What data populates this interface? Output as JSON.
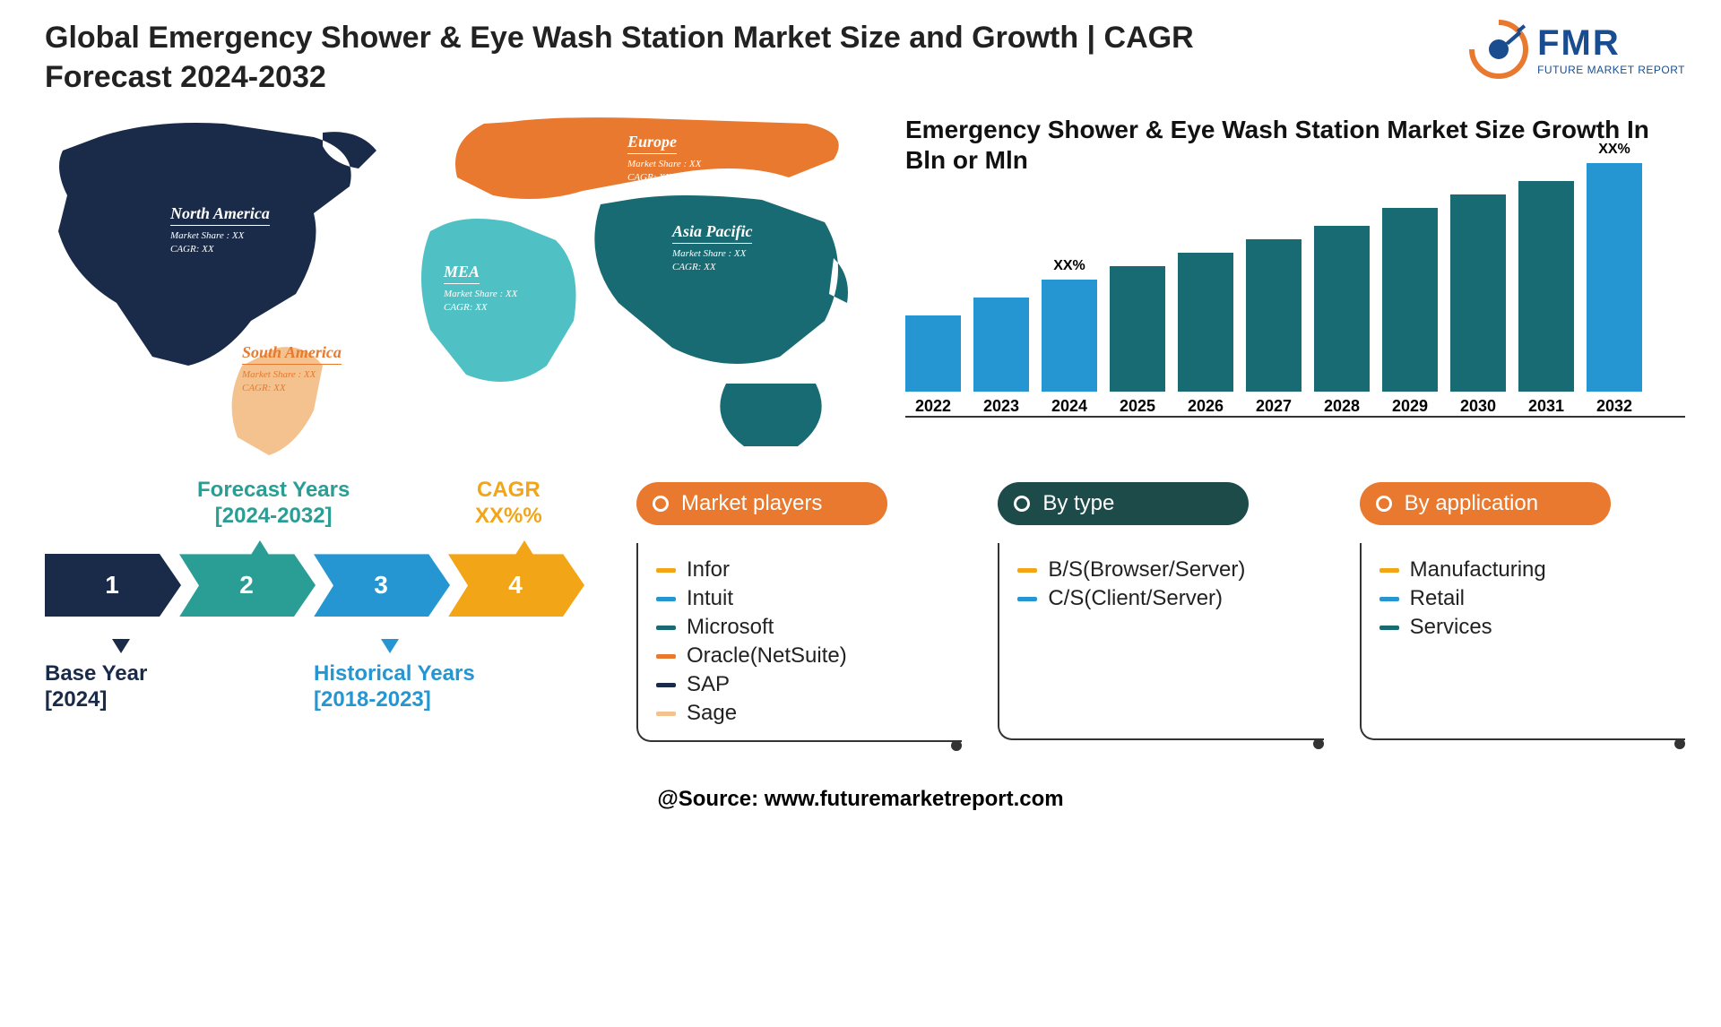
{
  "title": "Global Emergency Shower & Eye Wash Station Market Size and Growth | CAGR Forecast 2024-2032",
  "logo": {
    "main": "FMR",
    "sub": "FUTURE MARKET REPORT"
  },
  "colors": {
    "dark_navy": "#1a2b4a",
    "orange": "#e8792f",
    "teal_dark": "#186b72",
    "teal_light": "#4fc1c5",
    "tan": "#f3c28e",
    "blue": "#2596d1",
    "amber": "#f2a516",
    "teal_mid": "#2a9d94",
    "text": "#222222"
  },
  "map": {
    "regions": [
      {
        "key": "na",
        "name": "North America",
        "share": "Market Share : XX",
        "cagr": "CAGR: XX",
        "color": "#1a2b4a"
      },
      {
        "key": "sa",
        "name": "South America",
        "share": "Market Share : XX",
        "cagr": "CAGR: XX",
        "color": "#f3c28e",
        "label_color": "#e8792f"
      },
      {
        "key": "eu",
        "name": "Europe",
        "share": "Market Share : XX",
        "cagr": "CAGR: XX",
        "color": "#e8792f"
      },
      {
        "key": "mea",
        "name": "MEA",
        "share": "Market Share : XX",
        "cagr": "CAGR: XX",
        "color": "#4fc1c5"
      },
      {
        "key": "ap",
        "name": "Asia Pacific",
        "share": "Market Share : XX",
        "cagr": "CAGR: XX",
        "color": "#186b72"
      }
    ]
  },
  "chart": {
    "title": "Emergency Shower & Eye Wash Station Market Size Growth In\nBln or Mln",
    "years": [
      "2022",
      "2023",
      "2024",
      "2025",
      "2026",
      "2027",
      "2028",
      "2029",
      "2030",
      "2031",
      "2032"
    ],
    "heights": [
      85,
      105,
      125,
      140,
      155,
      170,
      185,
      205,
      220,
      235,
      255
    ],
    "colors": [
      "#2596d1",
      "#2596d1",
      "#2596d1",
      "#186b72",
      "#186b72",
      "#186b72",
      "#186b72",
      "#186b72",
      "#186b72",
      "#186b72",
      "#2596d1"
    ],
    "annotations": [
      {
        "index": 2,
        "text": "XX%"
      },
      {
        "index": 10,
        "text": "XX%"
      }
    ]
  },
  "timeline": {
    "forecast": {
      "label": "Forecast Years",
      "range": "[2024-2032]",
      "color": "#2a9d94"
    },
    "cagr": {
      "label": "CAGR",
      "value": "XX%%",
      "color": "#f2a516"
    },
    "base": {
      "label": "Base Year",
      "range": "[2024]",
      "color": "#1a2b4a"
    },
    "historical": {
      "label": "Historical Years",
      "range": "[2018-2023]",
      "color": "#2596d1"
    },
    "steps": [
      {
        "n": "1",
        "color": "#1a2b4a"
      },
      {
        "n": "2",
        "color": "#2a9d94"
      },
      {
        "n": "3",
        "color": "#2596d1"
      },
      {
        "n": "4",
        "color": "#f2a516"
      }
    ]
  },
  "pills": {
    "players": {
      "title": "Market players",
      "bg": "#e8792f",
      "items": [
        {
          "t": "Infor",
          "c": "#f2a516"
        },
        {
          "t": "Intuit",
          "c": "#2596d1"
        },
        {
          "t": "Microsoft",
          "c": "#186b72"
        },
        {
          "t": "Oracle(NetSuite)",
          "c": "#e8792f"
        },
        {
          "t": "SAP",
          "c": "#1a2b4a"
        },
        {
          "t": "Sage",
          "c": "#f3c28e"
        }
      ]
    },
    "type": {
      "title": "By type",
      "bg": "#1d4b4a",
      "items": [
        {
          "t": "B/S(Browser/Server)",
          "c": "#f2a516"
        },
        {
          "t": "C/S(Client/Server)",
          "c": "#2596d1"
        }
      ]
    },
    "application": {
      "title": "By application",
      "bg": "#e8792f",
      "items": [
        {
          "t": "Manufacturing",
          "c": "#f2a516"
        },
        {
          "t": "Retail",
          "c": "#2596d1"
        },
        {
          "t": "Services",
          "c": "#186b72"
        }
      ]
    }
  },
  "source": "@Source: www.futuremarketreport.com"
}
